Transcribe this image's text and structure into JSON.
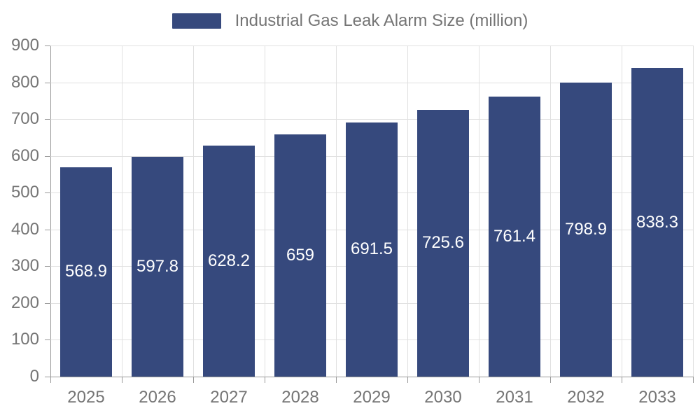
{
  "legend": {
    "label": "Industrial Gas Leak Alarm Size (million)"
  },
  "colors": {
    "bar": "#36497d",
    "grid_line": "#e0e0e0",
    "axis_line": "#999999",
    "axis_label_text": "#757575",
    "bar_label_text": "#ffffff",
    "background": "#ffffff"
  },
  "chart_data": {
    "type": "bar",
    "title": "Industrial Gas Leak Alarm Size (million)",
    "categories": [
      "2025",
      "2026",
      "2027",
      "2028",
      "2029",
      "2030",
      "2031",
      "2032",
      "2033"
    ],
    "values": [
      568.9,
      597.8,
      628.2,
      659,
      691.5,
      725.6,
      761.4,
      798.9,
      838.3
    ],
    "xlabel": "",
    "ylabel": "",
    "ylim": [
      0,
      900
    ],
    "ytick_step": 100,
    "ytick_labels": [
      "0",
      "100",
      "200",
      "300",
      "400",
      "500",
      "600",
      "700",
      "800",
      "900"
    ],
    "grid": true,
    "bar_value_labels_shown": true,
    "legend_position": "top-center"
  }
}
